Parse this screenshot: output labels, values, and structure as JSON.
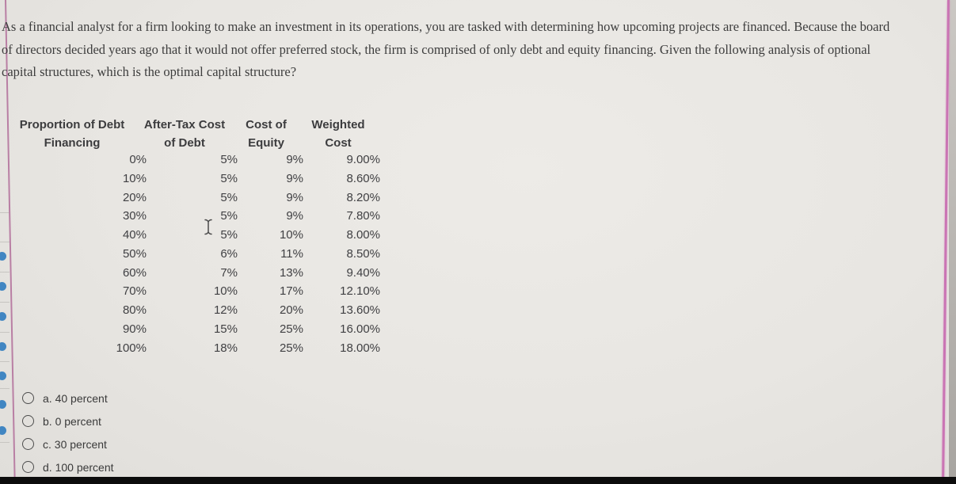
{
  "question": {
    "lines": [
      "As a financial analyst for a firm looking to make an investment in its operations, you are tasked with determining how upcoming projects are financed. Because the board",
      "of directors decided years ago that it would not offer preferred stock, the firm is comprised of only debt and equity financing. Given the following analysis of optional",
      "capital structures, which is the optimal capital structure?"
    ]
  },
  "table": {
    "headers": [
      {
        "line1": "Proportion of Debt",
        "line2": "Financing"
      },
      {
        "line1": "After-Tax Cost",
        "line2": "of Debt"
      },
      {
        "line1": "Cost of",
        "line2": "Equity"
      },
      {
        "line1": "Weighted",
        "line2": "Cost"
      }
    ],
    "rows": [
      [
        "0%",
        "5%",
        "9%",
        "9.00%"
      ],
      [
        "10%",
        "5%",
        "9%",
        "8.60%"
      ],
      [
        "20%",
        "5%",
        "9%",
        "8.20%"
      ],
      [
        "30%",
        "5%",
        "9%",
        "7.80%"
      ],
      [
        "40%",
        "5%",
        "10%",
        "8.00%"
      ],
      [
        "50%",
        "6%",
        "11%",
        "8.50%"
      ],
      [
        "60%",
        "7%",
        "13%",
        "9.40%"
      ],
      [
        "70%",
        "10%",
        "17%",
        "12.10%"
      ],
      [
        "80%",
        "12%",
        "20%",
        "13.60%"
      ],
      [
        "90%",
        "15%",
        "25%",
        "16.00%"
      ],
      [
        "100%",
        "18%",
        "25%",
        "18.00%"
      ]
    ]
  },
  "options": [
    {
      "label": "a. 40 percent",
      "selected": false
    },
    {
      "label": "b. 0 percent",
      "selected": false
    },
    {
      "label": "c. 30 percent",
      "selected": false
    },
    {
      "label": "d. 100 percent",
      "selected": false
    }
  ],
  "colors": {
    "background": "#e9e7e3",
    "text": "#3d3d3d",
    "accent_pink_left": "#b97fa4",
    "accent_pink_right": "#ca74b4",
    "bullet_blue": "#4186c2",
    "screen_edge_black": "#0c0c0c"
  }
}
